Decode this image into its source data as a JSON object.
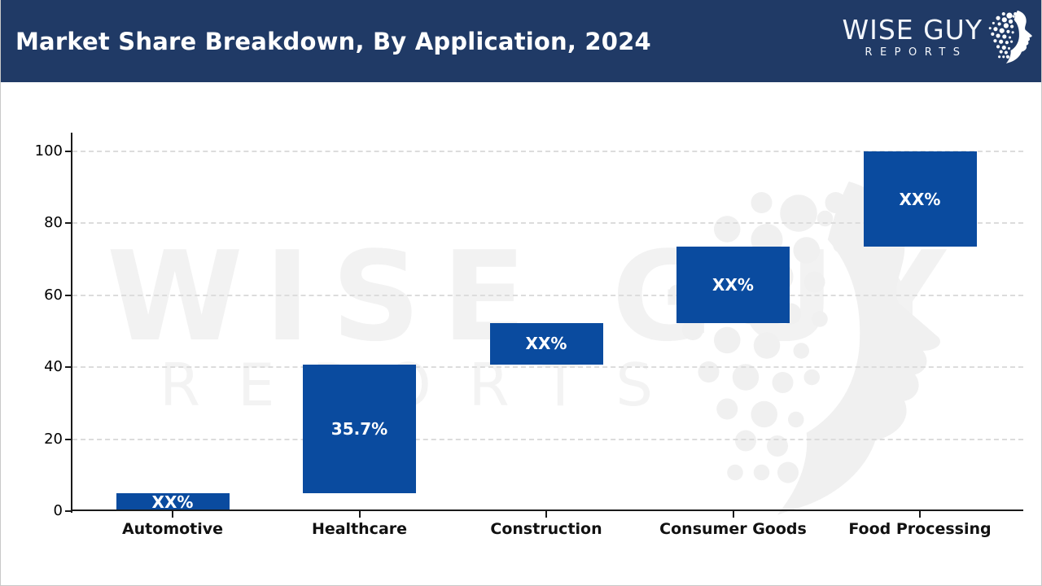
{
  "header": {
    "title": "Market Share Breakdown, By Application, 2024",
    "bg_color": "#203a66",
    "logo": {
      "line1": "WISE GUY",
      "line2": "REPORTS"
    }
  },
  "watermark": {
    "line1": "WISE GUY",
    "line2": "REPORTS"
  },
  "chart_data": {
    "type": "bar",
    "subtype": "waterfall",
    "title": "Market Share Breakdown, By Application, 2024",
    "categories": [
      "Automotive",
      "Healthcare",
      "Construction",
      "Consumer Goods",
      "Food Processing"
    ],
    "series": [
      {
        "category": "Automotive",
        "start": 0,
        "end": 5,
        "label": "XX%"
      },
      {
        "category": "Healthcare",
        "start": 5,
        "end": 40.7,
        "label": "35.7%"
      },
      {
        "category": "Construction",
        "start": 40.7,
        "end": 52.3,
        "label": "XX%"
      },
      {
        "category": "Consumer Goods",
        "start": 52.3,
        "end": 73.5,
        "label": "XX%"
      },
      {
        "category": "Food Processing",
        "start": 73.5,
        "end": 100,
        "label": "XX%"
      }
    ],
    "yticks": [
      0,
      20,
      40,
      60,
      80,
      100
    ],
    "ylim": [
      0,
      105
    ],
    "grid": "horizontal-dashed",
    "legend": "none",
    "xlabel": "",
    "ylabel": "",
    "bar_color": "#0a4b9f",
    "bar_label_color": "#ffffff",
    "axis_color": "#1a1a1a",
    "grid_color": "#dcdcdc",
    "tick_label_color": "#000000"
  }
}
